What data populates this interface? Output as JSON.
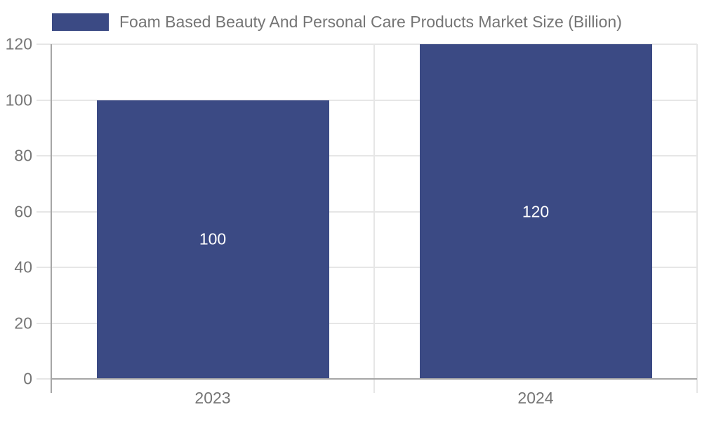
{
  "legend": {
    "label": "Foam Based Beauty And Personal Care Products Market Size (Billion)"
  },
  "chart_data": {
    "type": "bar",
    "title": "Foam Based Beauty And Personal Care Products Market Size (Billion)",
    "categories": [
      "2023",
      "2024"
    ],
    "values": [
      100,
      120
    ],
    "bar_value_labels": [
      "100",
      "120"
    ],
    "xlabel": "",
    "ylabel": "",
    "ylim": [
      0,
      120
    ],
    "yticks": [
      0,
      20,
      40,
      60,
      80,
      100,
      120
    ],
    "grid": true,
    "legend_position": "top-left",
    "colors": {
      "bar": "#3b4a84",
      "axis": "#a6a6a6",
      "gridline": "#e6e6e6",
      "tick_text": "#757575",
      "bar_label_text": "#ffffff",
      "background": "#ffffff"
    }
  }
}
